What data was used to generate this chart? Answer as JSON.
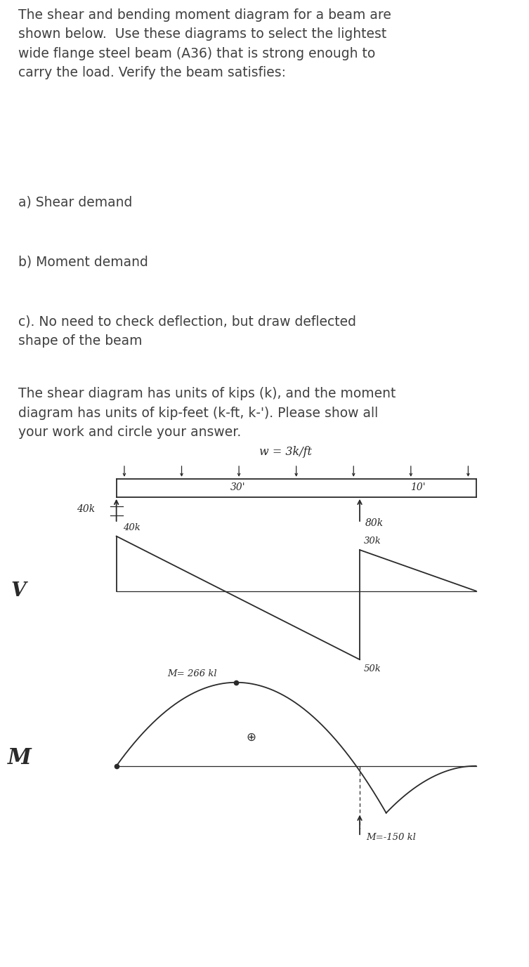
{
  "background_color": "#ffffff",
  "text_color": "#404040",
  "paragraph1": "The shear and bending moment diagram for a beam are\nshown below.  Use these diagrams to select the lightest\nwide flange steel beam (A36) that is strong enough to\ncarry the load. Verify the beam satisfies:",
  "item_a": "a) Shear demand",
  "item_b": "b) Moment demand",
  "item_c": "c). No need to check deflection, but draw deflected\nshape of the beam",
  "paragraph2": "The shear diagram has units of kips (k), and the moment\ndiagram has units of kip-feet (k-ft, k-'). Please show all\nyour work and circle your answer.",
  "diagram_sketch_color": "#2a2a2a",
  "beam_label_w": "w = 3k/ft",
  "beam_span1": "30'",
  "beam_span2": "10'",
  "reaction_left": "40k",
  "reaction_right": "80k",
  "shear_label_top": "40k",
  "shear_label_right_top": "30k",
  "shear_label_right_bot": "50k",
  "moment_max_label": "M= 266 kl",
  "moment_min_label": "M=-150 kl",
  "V_label": "V",
  "M_label": "M",
  "font_size_body": 13.5,
  "handwriting_font": "DejaVu Sans"
}
